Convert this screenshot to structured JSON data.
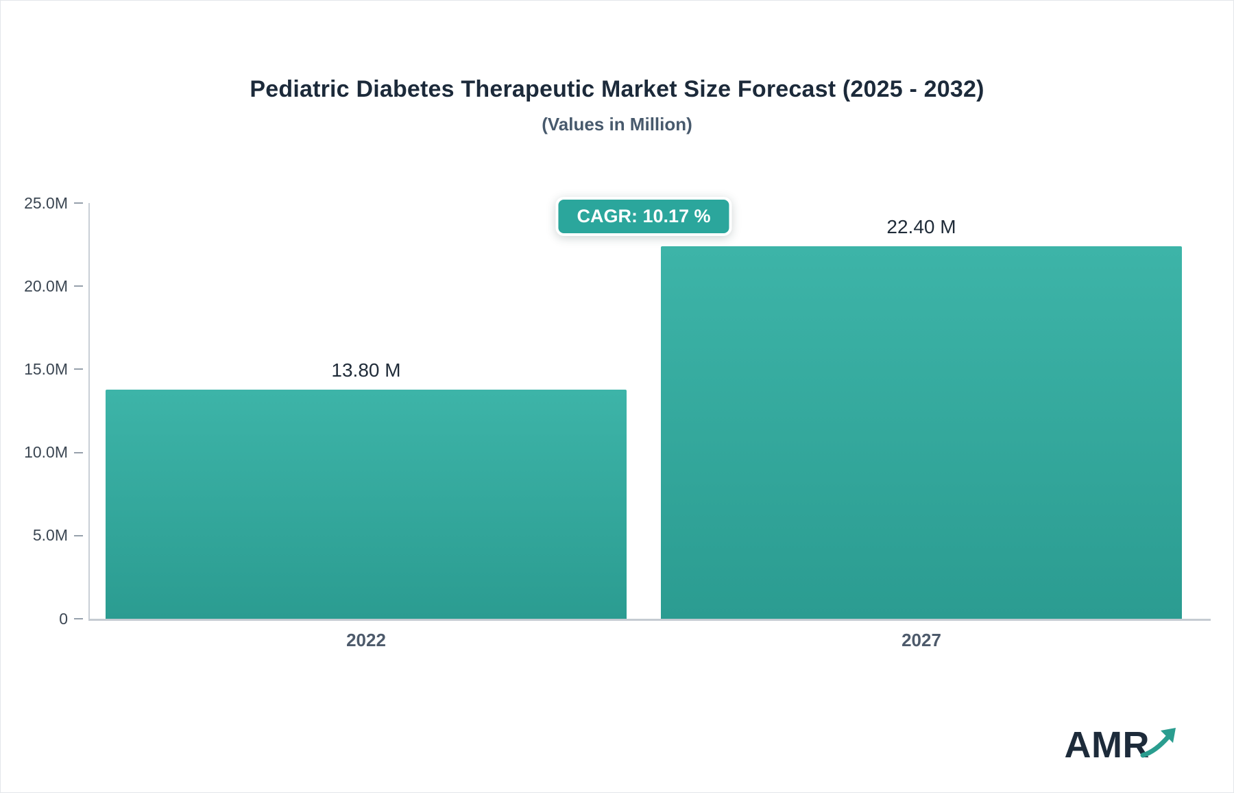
{
  "header": {
    "title": "Pediatric Diabetes Therapeutic Market Size Forecast (2025 - 2032)",
    "subtitle": "(Values in Million)"
  },
  "badge": {
    "label": "CAGR: 10.17 %",
    "background": "#2ba69c",
    "text_color": "#ffffff"
  },
  "logo": {
    "text": "AMR",
    "arrow_color": "#2a9d8f"
  },
  "chart_data": {
    "type": "bar",
    "title": "Pediatric Diabetes Therapeutic Market Size Forecast (2025 - 2032)",
    "subtitle": "(Values in Million)",
    "categories": [
      "2022",
      "2027"
    ],
    "values": [
      13.8,
      22.4
    ],
    "value_labels": [
      "13.80 M",
      "22.40 M"
    ],
    "xlabel": "",
    "ylabel": "",
    "ylim": [
      0,
      25
    ],
    "yticks": [
      0,
      5,
      10,
      15,
      20,
      25
    ],
    "ytick_labels": [
      "0",
      "5.0M",
      "10.0M",
      "15.0M",
      "20.0M",
      "25.0M"
    ],
    "grid": false,
    "legend": false,
    "annotation": "CAGR: 10.17 %",
    "bar_gradient_top": "#3db4a8",
    "bar_gradient_bottom": "#2b9c91"
  }
}
